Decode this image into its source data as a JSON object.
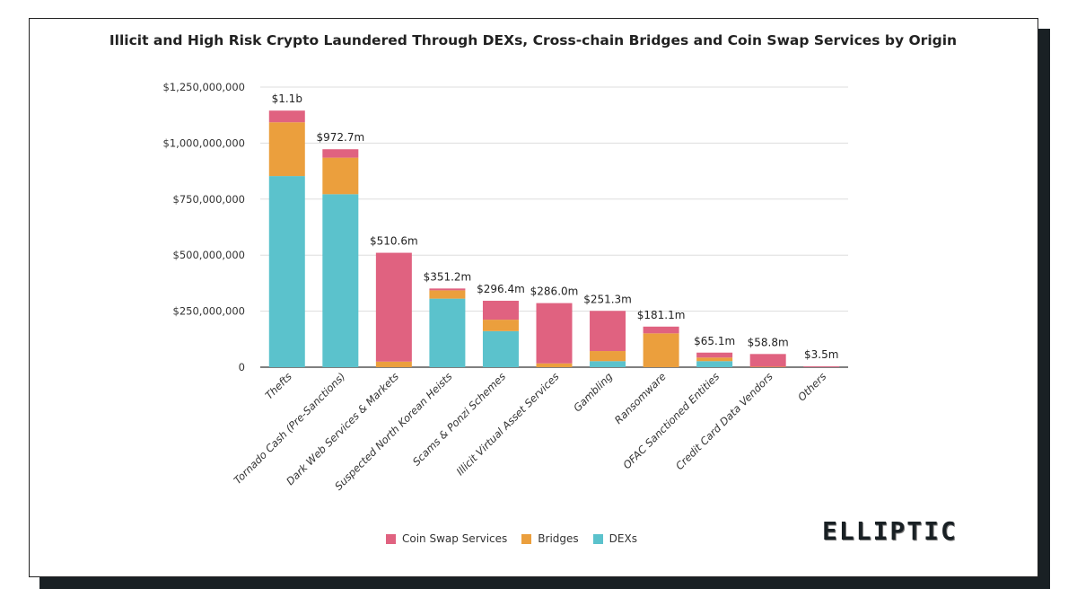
{
  "chart_data": {
    "type": "bar",
    "stacked": true,
    "title": "Illicit and High Risk Crypto Laundered Through DEXs,  Cross-chain Bridges and Coin Swap Services by Origin",
    "xlabel": "",
    "ylabel": "",
    "ylim": [
      0,
      1250000000
    ],
    "yticks": [
      0,
      250000000,
      500000000,
      750000000,
      1000000000,
      1250000000
    ],
    "ytick_labels": [
      "0",
      "$250,000,000",
      "$500,000,000",
      "$750,000,000",
      "$1,000,000,000",
      "$1,250,000,000"
    ],
    "grid": true,
    "legend_position": "bottom",
    "categories": [
      "Thefts",
      "Tornado Cash (Pre-Sanctions)",
      "Dark Web Services & Markets",
      "Suspected North Korean Heists",
      "Scams & Ponzi Schemes",
      "Illicit Virtual Asset Services",
      "Gambling",
      "Ransomware",
      "OFAC Sanctioned Entities",
      "Credit Card Data Vendors",
      "Others"
    ],
    "totals_labels": [
      "$1.1b",
      "$972.7m",
      "$510.6m",
      "$351.2m",
      "$296.4m",
      "$286.0m",
      "$251.3m",
      "$181.1m",
      "$65.1m",
      "$58.8m",
      "$3.5m"
    ],
    "series": [
      {
        "name": "DEXs",
        "color": "#5bc2cc",
        "values": [
          853000000,
          772000000,
          0,
          306000000,
          161000000,
          0,
          27000000,
          0,
          27000000,
          0,
          0
        ]
      },
      {
        "name": "Bridges",
        "color": "#eb9f3d",
        "values": [
          240000000,
          163000000,
          25000000,
          37000000,
          51000000,
          17000000,
          45000000,
          151000000,
          16000000,
          2000000,
          0
        ]
      },
      {
        "name": "Coin Swap Services",
        "color": "#e06280",
        "values": [
          52000000,
          37700000,
          485600000,
          8200000,
          84400000,
          269000000,
          179300000,
          30100000,
          22100000,
          56800000,
          3500000
        ]
      }
    ],
    "legend_order": [
      "Coin Swap Services",
      "Bridges",
      "DEXs"
    ]
  },
  "brand": {
    "logo_text": "ELLIPTIC"
  }
}
